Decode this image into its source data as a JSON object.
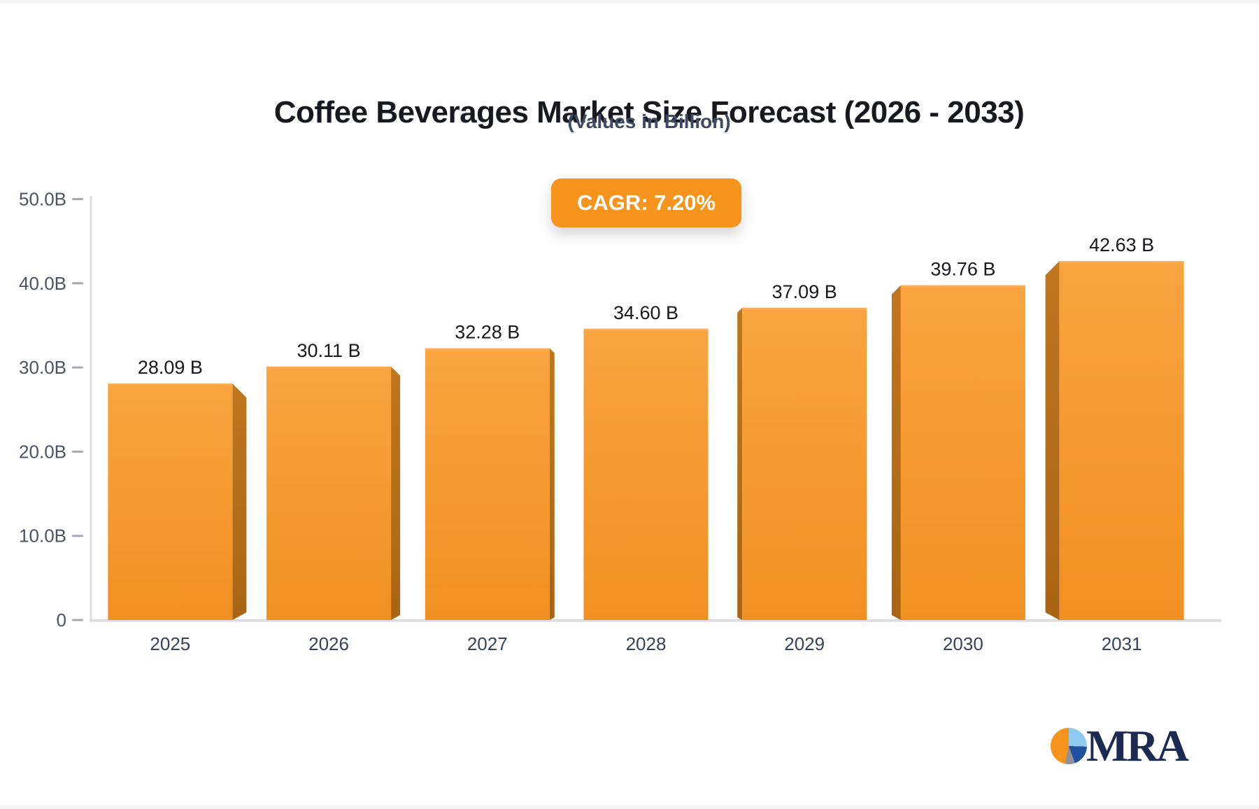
{
  "page": {
    "background": "#F5F5F6",
    "card_background": "#FFFFFF"
  },
  "header": {
    "title": "Coffee Beverages Market Size Forecast (2026 - 2033)",
    "subtitle": "(Values in Billion)"
  },
  "badge": {
    "label": "CAGR: 7.20%",
    "background": "#F7941E",
    "text_color": "#FFFFFF"
  },
  "chart_data": {
    "type": "bar",
    "title": "Coffee Beverages Market Size Forecast (2026 - 2033)",
    "subtitle": "(Values in Billion)",
    "xlabel": "",
    "ylabel": "",
    "categories": [
      "2025",
      "2026",
      "2027",
      "2028",
      "2029",
      "2030",
      "2031"
    ],
    "values": [
      28.09,
      30.11,
      32.28,
      34.6,
      37.09,
      39.76,
      42.63
    ],
    "value_labels": [
      "28.09 B",
      "30.11 B",
      "32.28 B",
      "34.60 B",
      "37.09 B",
      "39.76 B",
      "42.63 B"
    ],
    "ylim": [
      0,
      50
    ],
    "yticks": [
      {
        "value": 0,
        "label": "0"
      },
      {
        "value": 10,
        "label": "10.0B"
      },
      {
        "value": 20,
        "label": "20.0B"
      },
      {
        "value": 30,
        "label": "30.0B"
      },
      {
        "value": 40,
        "label": "40.0B"
      },
      {
        "value": 50,
        "label": "50.0B"
      }
    ],
    "grid": false,
    "legend": false,
    "bar_style": {
      "face_top": "#F9A440",
      "face_bottom": "#F19022",
      "side_top": "#C0761C",
      "side_bottom": "#A96414",
      "top_highlight": "#FBAE53"
    },
    "axis": {
      "line_color": "#DBDBE1",
      "tick_color": "#A6AAB3",
      "ytick_label_color": "#4A5464",
      "xtick_label_color": "#37435A",
      "value_label_color": "#17191F"
    }
  },
  "logo": {
    "text": "MRA",
    "text_color": "#1B2B52",
    "pie_colors": {
      "orange": "#F7941E",
      "light_blue": "#8FCBEE",
      "dark_blue": "#20509E",
      "gray": "#8E929C"
    }
  }
}
